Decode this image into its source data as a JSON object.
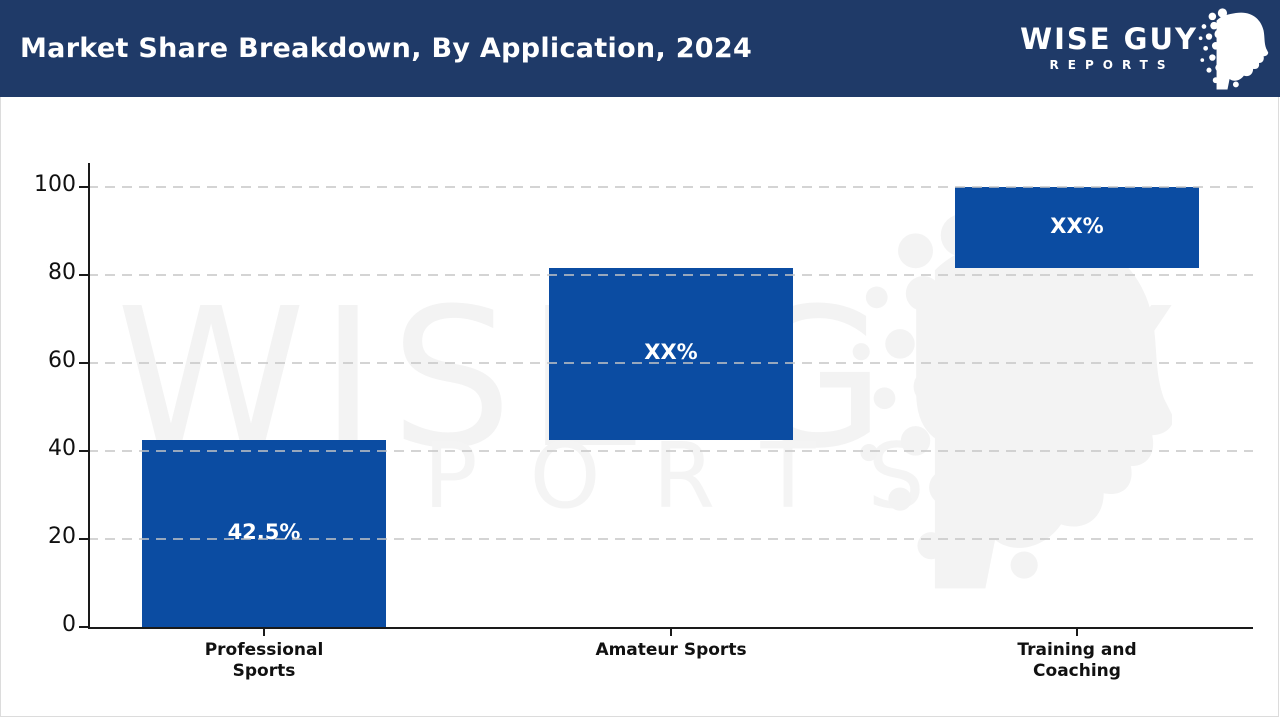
{
  "header": {
    "title": "Market Share Breakdown, By Application, 2024",
    "bg_color": "#1F3A68",
    "logo": {
      "line1": "WISE GUY",
      "line2": "REPORTS"
    }
  },
  "watermark": {
    "line1": "WISE GUY",
    "line2": "REPORTS"
  },
  "chart_data": {
    "type": "bar",
    "subtype": "waterfall-stacked-breakdown",
    "title": "Market Share Breakdown, By Application, 2024",
    "categories": [
      [
        "Professional",
        "Sports"
      ],
      [
        "Amateur Sports"
      ],
      [
        "Training and",
        "Coaching"
      ]
    ],
    "segments": [
      {
        "category": "Professional Sports",
        "start": 0,
        "end": 42.5,
        "value_est": 42.5,
        "label": "42.5%"
      },
      {
        "category": "Amateur Sports",
        "start": 42.5,
        "end": 81.5,
        "value_est": 39.0,
        "label": "XX%"
      },
      {
        "category": "Training and Coaching",
        "start": 81.5,
        "end": 100,
        "value_est": 18.5,
        "label": "XX%"
      }
    ],
    "bar_color": "#0B4CA2",
    "label_color": "#ffffff",
    "ylim": [
      0,
      105
    ],
    "yticks": [
      0,
      20,
      40,
      60,
      80,
      100
    ],
    "grid": "horizontal dashed, drawn over bars",
    "legend": "none",
    "xlabel": "",
    "ylabel": ""
  }
}
